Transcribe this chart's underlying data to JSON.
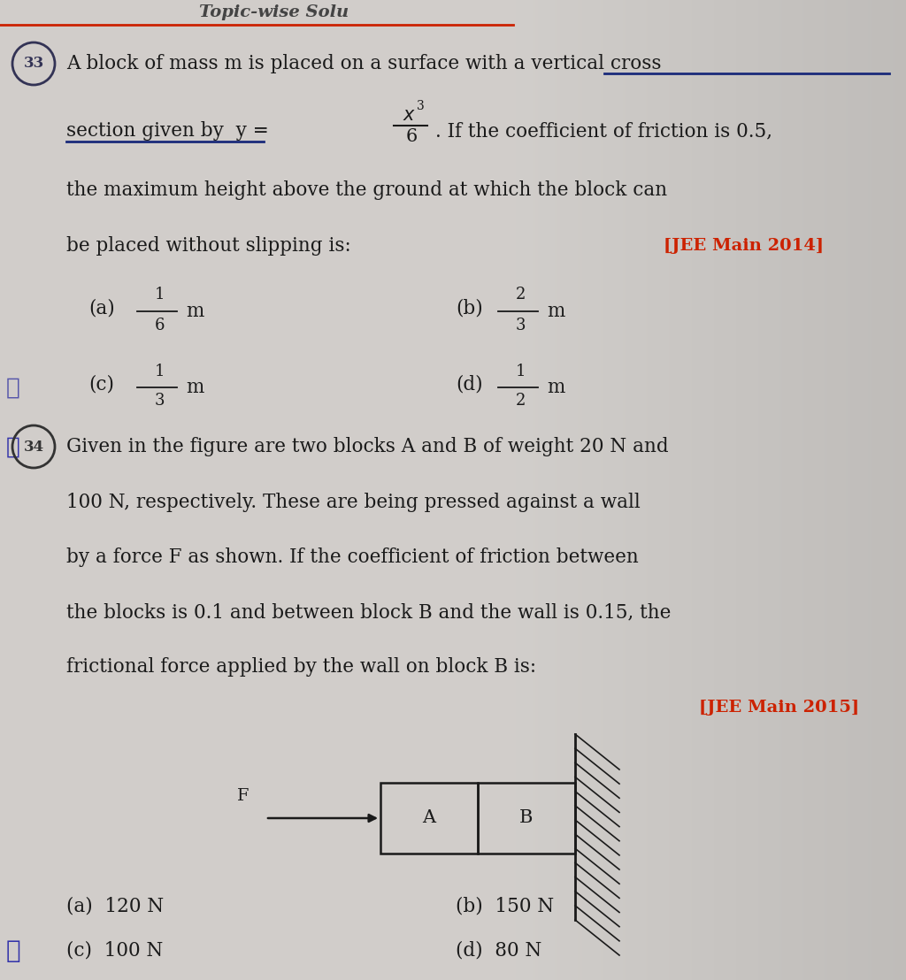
{
  "bg_color_left": "#ccc9c2",
  "bg_color_right": "#b8b4ad",
  "text_color": "#1a1a1a",
  "jee_color": "#cc2200",
  "underline_blue": "#1a2a7a",
  "underline_red": "#cc2200",
  "title_partial": "Topic-wise Solu",
  "q33_text1": "A block of mass m is placed on a surface with a vertical cross",
  "q33_text2a": "section given by  y = ",
  "q33_text2b": ". If the coefficient of friction is 0.5,",
  "q33_text3": "the maximum height above the ground at which the block can",
  "q33_text4": "be placed without slipping is:",
  "jee2014": "[JEE Main 2014]",
  "q34_text1": "Given in the figure are two blocks A and B of weight 20 N and",
  "q34_text2": "100 N, respectively. These are being pressed against a wall",
  "q34_text3": "by a force F as shown. If the coefficient of friction between",
  "q34_text4": "the blocks is 0.1 and between block B and the wall is 0.15, the",
  "q34_text5": "frictional force applied by the wall on block B is:",
  "jee2015": "[JEE Main 2015]"
}
